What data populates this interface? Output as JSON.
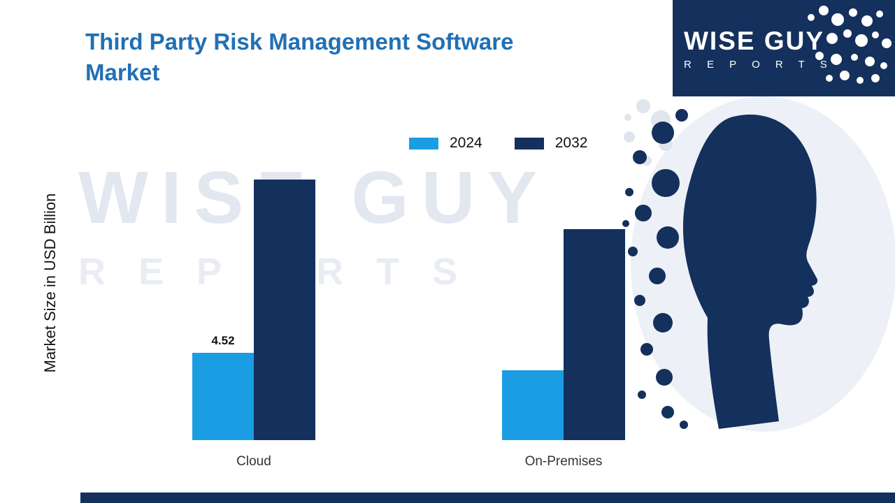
{
  "page": {
    "title": "Third Party Risk Management Software Market"
  },
  "logo": {
    "line1": "WISE GUY",
    "line2": "R E P O R T S"
  },
  "watermark": {
    "line1": "WISE GUY",
    "line2": "R E P O R T S"
  },
  "chart_data": {
    "type": "bar",
    "title": "Third Party Risk Management Software Market",
    "categories": [
      "Cloud",
      "On-Premises"
    ],
    "series": [
      {
        "name": "2024",
        "color": "#1b9de3",
        "values": [
          4.52,
          3.6
        ]
      },
      {
        "name": "2032",
        "color": "#14305c",
        "values": [
          13.5,
          10.9
        ]
      }
    ],
    "value_labels": [
      [
        "4.52",
        ""
      ],
      [
        "",
        ""
      ]
    ],
    "xlabel": "",
    "ylabel": "Market Size in USD Billion",
    "ylim": [
      0,
      15
    ],
    "grid": false,
    "legend_position": "top-center"
  },
  "colors": {
    "title": "#2170b5",
    "accent_light": "#1b9de3",
    "accent_dark": "#14305c",
    "watermark": "#e3e7ef",
    "circle_gray": "#edf0f6"
  }
}
